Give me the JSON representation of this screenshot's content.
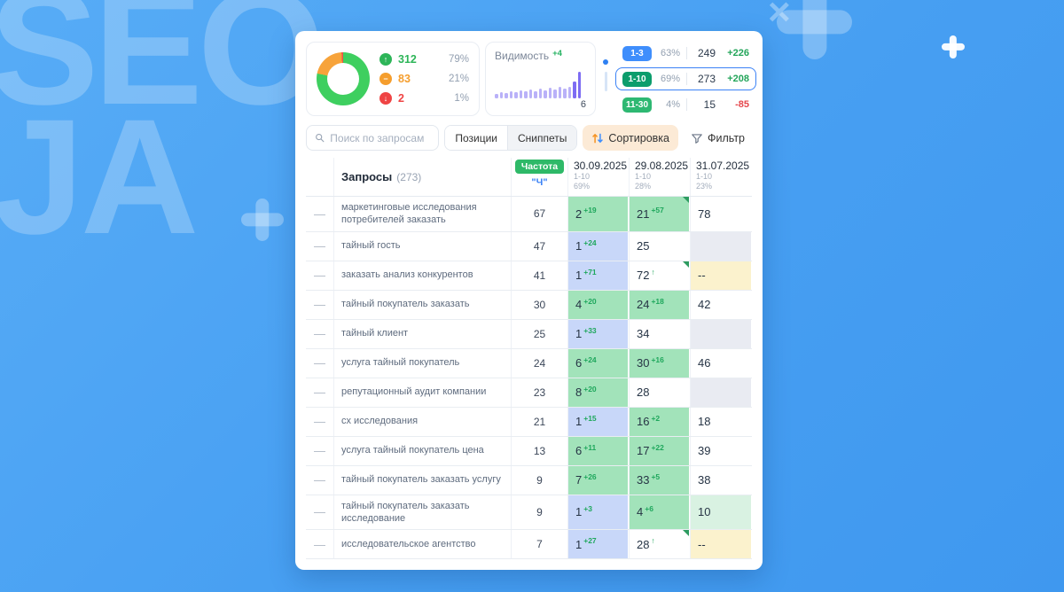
{
  "watermark": {
    "seo": "SEO",
    "x": "×",
    "ja": "JA"
  },
  "summary": {
    "donut": {
      "segments": [
        {
          "name": "grew",
          "percent": 79,
          "color": "#3ecf5f"
        },
        {
          "name": "same",
          "percent": 21,
          "color": "#f7a33a"
        },
        {
          "name": "fell",
          "percent": 1,
          "color": "#f25248"
        }
      ],
      "legend": [
        {
          "icon": "arrow-up-circle",
          "glyph": "↑",
          "value": "312",
          "percent": "79%",
          "color": "#2db558"
        },
        {
          "icon": "minus-circle",
          "glyph": "−",
          "value": "83",
          "percent": "21%",
          "color": "#f59e2d"
        },
        {
          "icon": "arrow-down-circle",
          "glyph": "↓",
          "value": "2",
          "percent": "1%",
          "color": "#ef4444"
        }
      ]
    },
    "visibility": {
      "title": "Видимость",
      "delta": "+4",
      "value": "6",
      "bars": [
        5,
        7,
        6,
        8,
        7,
        9,
        8,
        10,
        8,
        11,
        9,
        12,
        10,
        13,
        11,
        13,
        19,
        30
      ],
      "bar_color": "#b9b1f8",
      "bar_color_strong": "#7d6cf3",
      "strong_from": 16
    },
    "ranges": [
      {
        "badge": "1-3",
        "badge_color": "#3f8efc",
        "percent": "63%",
        "count": "249",
        "delta": "+226",
        "delta_color": "#23a55a",
        "selected": false
      },
      {
        "badge": "1-10",
        "badge_color": "#0c9d6c",
        "percent": "69%",
        "count": "273",
        "delta": "+208",
        "delta_color": "#23a55a",
        "selected": true
      },
      {
        "badge": "11-30",
        "badge_color": "#2eb872",
        "percent": "4%",
        "count": "15",
        "delta": "-85",
        "delta_color": "#e5484d",
        "selected": false
      }
    ]
  },
  "toolbar": {
    "search_placeholder": "Поиск по запросам",
    "positions_label": "Позиции",
    "snippets_label": "Сниппеты",
    "sort_label": "Сортировка",
    "filter_label": "Фильтр"
  },
  "table": {
    "queries_label": "Запросы",
    "queries_count": "(273)",
    "frequency_badge": "Частота",
    "frequency_type": "\"Ч\"",
    "dates": [
      {
        "date": "30.09.2025",
        "range": "1-10",
        "percent": "69%"
      },
      {
        "date": "29.08.2025",
        "range": "1-10",
        "percent": "28%"
      },
      {
        "date": "31.07.2025",
        "range": "1-10",
        "percent": "23%"
      }
    ],
    "rows": [
      {
        "query": "маркетинговые исследования потребителей заказать",
        "freq": "67",
        "cells": [
          {
            "v": "2",
            "d": "+19",
            "bg": "green"
          },
          {
            "v": "21",
            "d": "+57",
            "bg": "green",
            "corner": true
          },
          {
            "v": "78",
            "bg": "none"
          }
        ]
      },
      {
        "query": "тайный гость",
        "freq": "47",
        "cells": [
          {
            "v": "1",
            "d": "+24",
            "bg": "blue"
          },
          {
            "v": "25",
            "bg": "none"
          },
          {
            "v": "",
            "bg": "gray"
          }
        ]
      },
      {
        "query": "заказать анализ конкурентов",
        "freq": "41",
        "cells": [
          {
            "v": "1",
            "d": "+71",
            "bg": "blue"
          },
          {
            "v": "72",
            "arrow": true,
            "bg": "none",
            "corner": true
          },
          {
            "v": "--",
            "bg": "yellow"
          }
        ]
      },
      {
        "query": "тайный покупатель заказать",
        "freq": "30",
        "cells": [
          {
            "v": "4",
            "d": "+20",
            "bg": "green"
          },
          {
            "v": "24",
            "d": "+18",
            "bg": "green"
          },
          {
            "v": "42",
            "bg": "none"
          }
        ]
      },
      {
        "query": "тайный клиент",
        "freq": "25",
        "cells": [
          {
            "v": "1",
            "d": "+33",
            "bg": "blue"
          },
          {
            "v": "34",
            "bg": "none"
          },
          {
            "v": "",
            "bg": "gray"
          }
        ]
      },
      {
        "query": "услуга тайный покупатель",
        "freq": "24",
        "cells": [
          {
            "v": "6",
            "d": "+24",
            "bg": "green"
          },
          {
            "v": "30",
            "d": "+16",
            "bg": "green"
          },
          {
            "v": "46",
            "bg": "none"
          }
        ]
      },
      {
        "query": "репутационный аудит компании",
        "freq": "23",
        "cells": [
          {
            "v": "8",
            "d": "+20",
            "bg": "green"
          },
          {
            "v": "28",
            "bg": "none"
          },
          {
            "v": "",
            "bg": "gray"
          }
        ]
      },
      {
        "query": "сх исследования",
        "freq": "21",
        "cells": [
          {
            "v": "1",
            "d": "+15",
            "bg": "blue"
          },
          {
            "v": "16",
            "d": "+2",
            "bg": "green"
          },
          {
            "v": "18",
            "bg": "none"
          }
        ]
      },
      {
        "query": "услуга тайный покупатель цена",
        "freq": "13",
        "cells": [
          {
            "v": "6",
            "d": "+11",
            "bg": "green"
          },
          {
            "v": "17",
            "d": "+22",
            "bg": "green"
          },
          {
            "v": "39",
            "bg": "none"
          }
        ]
      },
      {
        "query": "тайный покупатель заказать услугу",
        "freq": "9",
        "cells": [
          {
            "v": "7",
            "d": "+26",
            "bg": "green"
          },
          {
            "v": "33",
            "d": "+5",
            "bg": "green"
          },
          {
            "v": "38",
            "bg": "none"
          }
        ]
      },
      {
        "query": "тайный покупатель заказать исследование",
        "freq": "9",
        "cells": [
          {
            "v": "1",
            "d": "+3",
            "bg": "blue"
          },
          {
            "v": "4",
            "d": "+6",
            "bg": "green"
          },
          {
            "v": "10",
            "bg": "lightgreen"
          }
        ]
      },
      {
        "query": "исследовательское агентство",
        "freq": "7",
        "cells": [
          {
            "v": "1",
            "d": "+27",
            "bg": "blue"
          },
          {
            "v": "28",
            "arrow": true,
            "bg": "none",
            "corner": true
          },
          {
            "v": "--",
            "bg": "yellow"
          }
        ]
      }
    ]
  }
}
